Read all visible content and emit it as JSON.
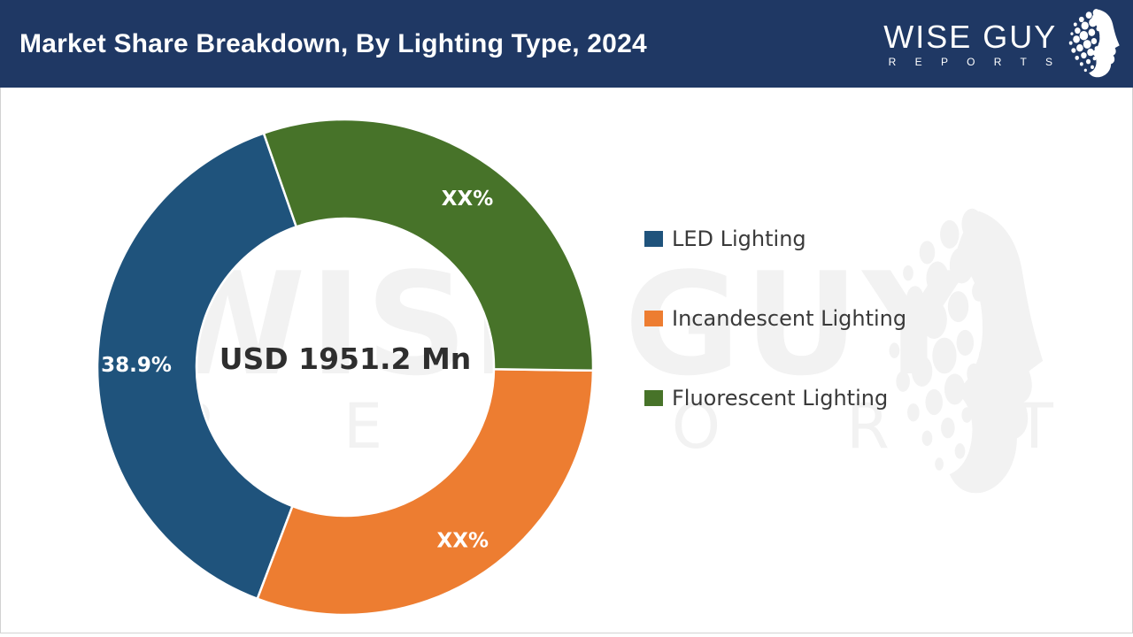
{
  "header": {
    "title": "Market Share Breakdown, By Lighting Type, 2024",
    "background_color": "#1F3864",
    "logo": {
      "brand": "WISE GUY",
      "brand_sub": "R E P O R T S"
    }
  },
  "watermark": {
    "line1": "WISE GUY",
    "line2": "R E P O R T S"
  },
  "chart_data": {
    "type": "pie",
    "subtype": "donut",
    "center_label": "USD 1951.2 Mn",
    "slices": [
      {
        "label": "LED Lighting",
        "value": 38.9,
        "display_pct": "38.9%",
        "color": "#1F537C"
      },
      {
        "label": "Incandescent Lighting",
        "value": 30.55,
        "display_pct": "XX%",
        "color": "#ED7D31"
      },
      {
        "label": "Fluorescent Lighting",
        "value": 30.55,
        "display_pct": "XX%",
        "color": "#477329"
      }
    ],
    "start_angle_deg": 109.2,
    "direction": "counterclockwise",
    "hole_ratio": 0.6,
    "label_distance_ratio": 0.843,
    "legend_position": "right",
    "slice_label_color": "#ffffff",
    "slice_gap_color": "#ffffff"
  }
}
